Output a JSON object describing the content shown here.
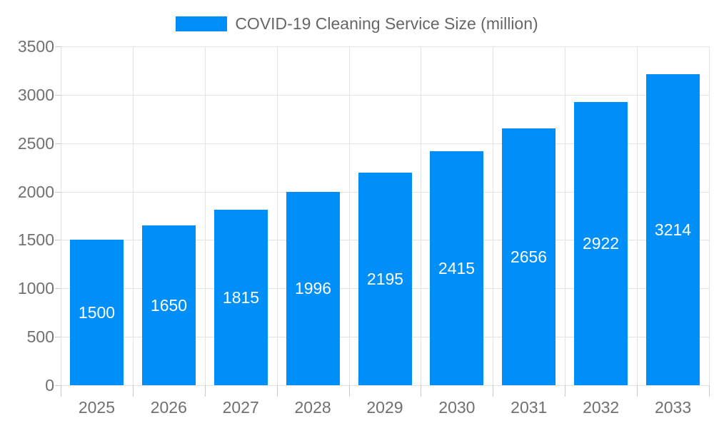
{
  "chart_data": {
    "type": "bar",
    "title": "COVID-19 Cleaning Service Size (million)",
    "legend": {
      "label": "COVID-19 Cleaning Service Size (million)",
      "position": "top"
    },
    "categories": [
      "2025",
      "2026",
      "2027",
      "2028",
      "2029",
      "2030",
      "2031",
      "2032",
      "2033"
    ],
    "values": [
      1500,
      1650,
      1815,
      1996,
      2195,
      2415,
      2656,
      2922,
      3214
    ],
    "xlabel": "",
    "ylabel": "",
    "ylim": [
      0,
      3500
    ],
    "yticks": [
      0,
      500,
      1000,
      1500,
      2000,
      2500,
      3000,
      3500
    ],
    "grid": true,
    "data_labels": "inside-center",
    "colors": {
      "bar": "#008FF8",
      "bar_label": "#FFFFFF",
      "axis_text": "#707070",
      "legend_text": "#666666",
      "gridline": "#E3E3E3",
      "axis_line": "#B6B6B6",
      "tick": "#C9C9C9",
      "background": "#FFFFFF"
    }
  }
}
